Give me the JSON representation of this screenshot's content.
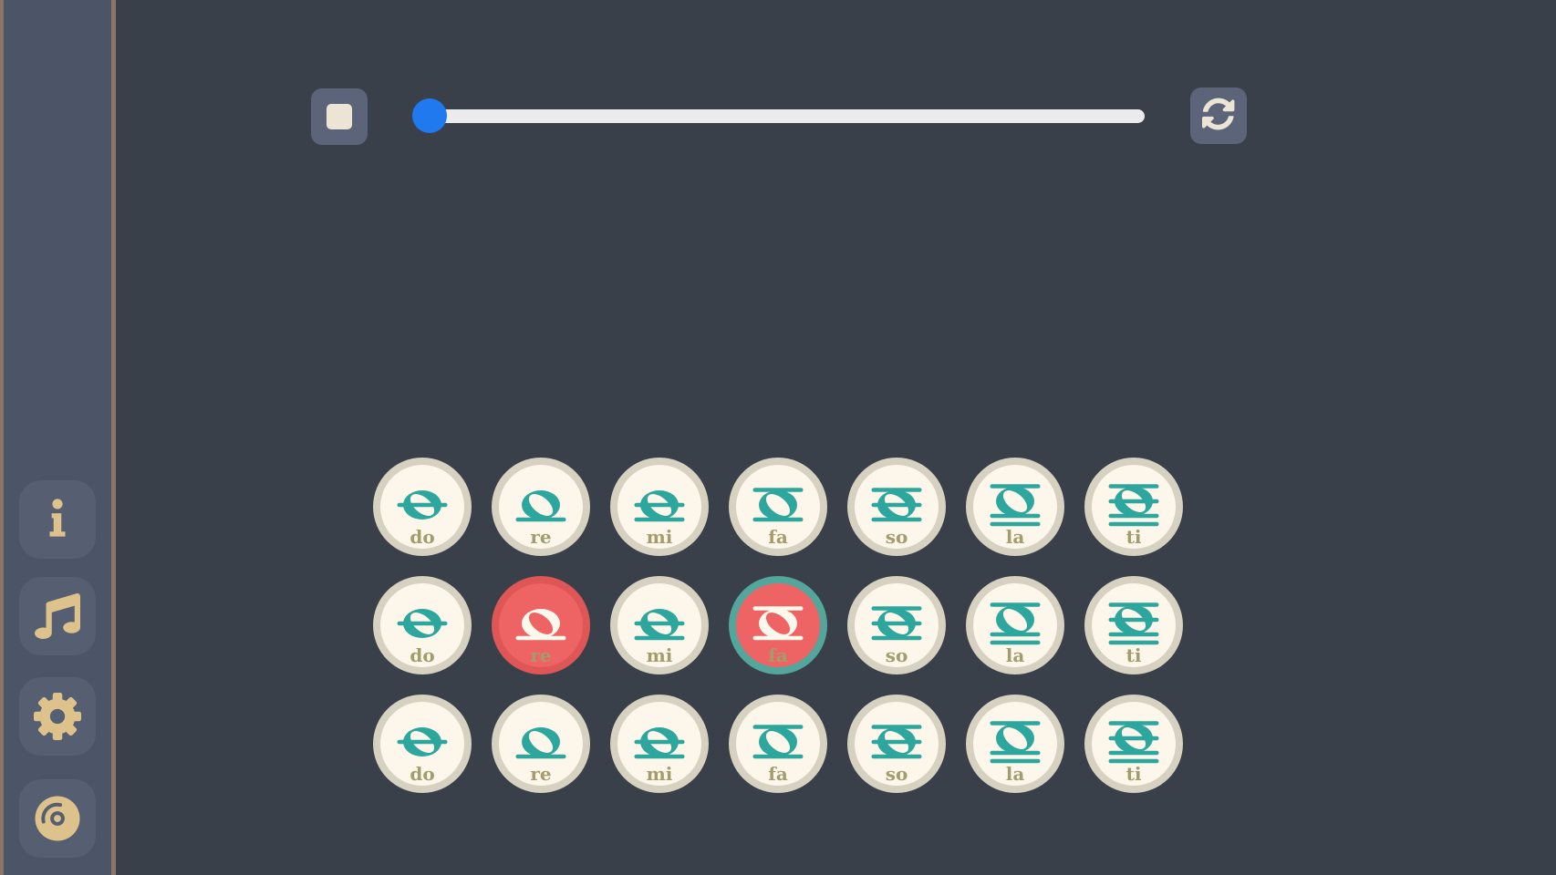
{
  "colors": {
    "bg_main": "#394049",
    "sidebar_bg": "#4c5468",
    "sidebar_border": "#8c7566",
    "sidebar_button_bg": "#565e71",
    "icon_gold": "#ddc28c",
    "button_bg": "#5b6478",
    "button_icon": "#ece4d4",
    "track": "#ebebed",
    "track_fill": "#1763cf",
    "thumb_blue": "#2079ef",
    "ring_beige": "#d6d1c0",
    "circle_cream": "#fcf7ea",
    "note_teal": "#2da69d",
    "note_cream": "#fdf8ec",
    "label_olive": "#a59c6e",
    "red_ring": "#df5656",
    "red_fill": "#ee6363",
    "teal_ring": "#54a69d"
  },
  "sidebar": {
    "items": [
      {
        "id": "info",
        "icon": "info-icon"
      },
      {
        "id": "music",
        "icon": "music-note-icon"
      },
      {
        "id": "settings",
        "icon": "gear-icon"
      },
      {
        "id": "disc",
        "icon": "disc-icon"
      }
    ]
  },
  "transport": {
    "stop": {
      "icon": "stop-icon"
    },
    "refresh": {
      "icon": "refresh-icon"
    },
    "slider": {
      "value_percent": 2,
      "min": 0,
      "max": 100
    }
  },
  "board": {
    "rows": [
      {
        "notes": [
          {
            "label": "do",
            "lines": [
              "mid"
            ],
            "state": "default"
          },
          {
            "label": "re",
            "lines": [
              "low"
            ],
            "state": "default"
          },
          {
            "label": "mi",
            "lines": [
              "mid",
              "low"
            ],
            "state": "default"
          },
          {
            "label": "fa",
            "lines": [
              "high",
              "low"
            ],
            "state": "default"
          },
          {
            "label": "so",
            "lines": [
              "high",
              "mid",
              "low"
            ],
            "state": "default"
          },
          {
            "label": "la",
            "lines": [
              "high",
              "low",
              "below"
            ],
            "state": "default"
          },
          {
            "label": "ti",
            "lines": [
              "high",
              "mid",
              "low",
              "below"
            ],
            "state": "default"
          }
        ]
      },
      {
        "notes": [
          {
            "label": "do",
            "lines": [
              "mid"
            ],
            "state": "default"
          },
          {
            "label": "re",
            "lines": [
              "low"
            ],
            "state": "active-red"
          },
          {
            "label": "mi",
            "lines": [
              "mid",
              "low"
            ],
            "state": "default"
          },
          {
            "label": "fa",
            "lines": [
              "high",
              "low"
            ],
            "state": "active-outline"
          },
          {
            "label": "so",
            "lines": [
              "high",
              "mid",
              "low"
            ],
            "state": "default"
          },
          {
            "label": "la",
            "lines": [
              "high",
              "low",
              "below"
            ],
            "state": "default"
          },
          {
            "label": "ti",
            "lines": [
              "high",
              "mid",
              "low",
              "below"
            ],
            "state": "default"
          }
        ]
      },
      {
        "notes": [
          {
            "label": "do",
            "lines": [
              "mid"
            ],
            "state": "default"
          },
          {
            "label": "re",
            "lines": [
              "low"
            ],
            "state": "default"
          },
          {
            "label": "mi",
            "lines": [
              "mid",
              "low"
            ],
            "state": "default"
          },
          {
            "label": "fa",
            "lines": [
              "high",
              "low"
            ],
            "state": "default"
          },
          {
            "label": "so",
            "lines": [
              "high",
              "mid",
              "low"
            ],
            "state": "default"
          },
          {
            "label": "la",
            "lines": [
              "high",
              "low",
              "below"
            ],
            "state": "default"
          },
          {
            "label": "ti",
            "lines": [
              "high",
              "mid",
              "low",
              "below"
            ],
            "state": "default"
          }
        ]
      }
    ]
  }
}
